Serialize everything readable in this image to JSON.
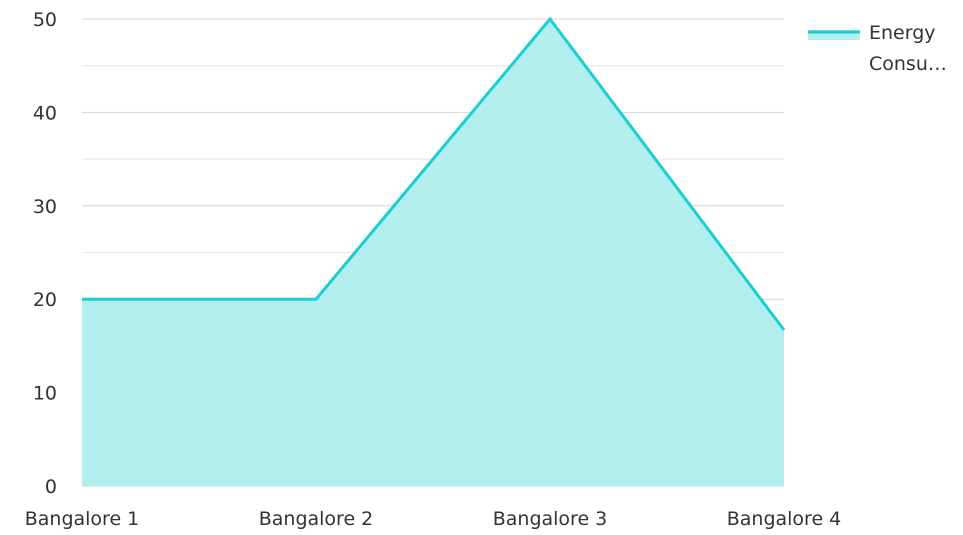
{
  "chart_data": {
    "type": "area",
    "title": "",
    "xlabel": "",
    "ylabel": "",
    "categories": [
      "Bangalore 1",
      "Bangalore 2",
      "Bangalore 3",
      "Bangalore 4"
    ],
    "series": [
      {
        "name": "Energy Consu…",
        "values": [
          20,
          20,
          50,
          16.7
        ],
        "line_color": "#1ccfcf",
        "fill_color": "#b2eeee"
      }
    ],
    "ylim": [
      0,
      50
    ],
    "yticks": [
      0,
      10,
      20,
      30,
      40,
      50
    ],
    "y_tick_labels": [
      "0",
      "10",
      "20",
      "30",
      "40",
      "50"
    ],
    "grid": true,
    "gridline_color": "#e0e0e0",
    "legend": {
      "position": "top-right",
      "lines": [
        "Energy",
        "Consu…"
      ]
    }
  }
}
